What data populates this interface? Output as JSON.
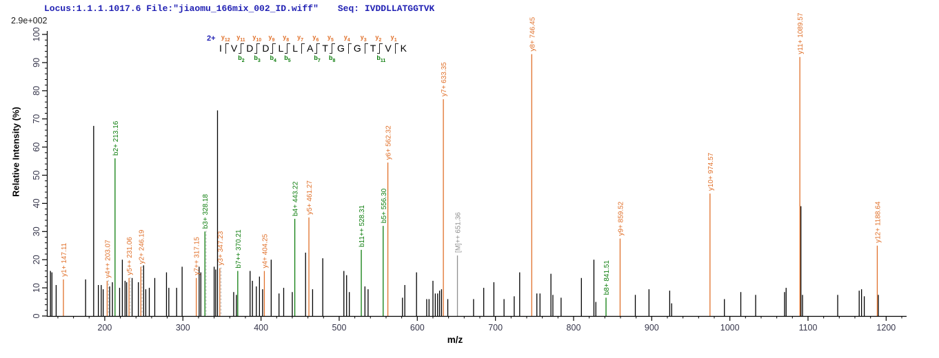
{
  "header": {
    "locus_file": "Locus:1.1.1.1017.6 File:\"jiaomu_166mix_002_ID.wiff\"",
    "seq": "Seq: IVDDLLATGGTVK"
  },
  "peptide": {
    "charge": "2+",
    "residues": [
      "I",
      "V",
      "D",
      "D",
      "L",
      "L",
      "A",
      "T",
      "G",
      "G",
      "T",
      "V",
      "K"
    ],
    "dividers": [
      {
        "y": "y12",
        "b": null
      },
      {
        "y": "y11",
        "b": "b2"
      },
      {
        "y": "y10",
        "b": "b3"
      },
      {
        "y": "y9",
        "b": "b4"
      },
      {
        "y": "y8",
        "b": "b5"
      },
      {
        "y": "y7",
        "b": null
      },
      {
        "y": "y6",
        "b": "b7"
      },
      {
        "y": "y5",
        "b": "b8"
      },
      {
        "y": "y4",
        "b": null
      },
      {
        "y": "y3",
        "b": null
      },
      {
        "y": "y2",
        "b": "b11"
      },
      {
        "y": "y1",
        "b": null
      }
    ]
  },
  "colors": {
    "y_ion": "#e0702a",
    "b_ion": "#0d7d0d",
    "precursor": "#8f8f8f",
    "unassigned_peak": "#000000",
    "header_blue": "#2222b4",
    "tick_label": "#35354a",
    "axis": "#000000"
  },
  "chart_data": {
    "type": "bar",
    "subtype": "ms2-fragmentation-spectrum",
    "xlabel": "m/z",
    "ylabel": "Relative  Intensity (%)",
    "x_axis": {
      "min": 126,
      "max": 1226,
      "major_ticks": [
        200,
        300,
        400,
        500,
        600,
        700,
        800,
        900,
        1000,
        1100,
        1200
      ],
      "minor_tick_step": 20,
      "minor_first": 140,
      "minor_last": 1220
    },
    "y_axis": {
      "min": 0,
      "max": 100,
      "major_tick_step": 10,
      "minor_tick_step": 2,
      "scale_label": "2.9e+002"
    },
    "legend": "none",
    "grid": false,
    "series": [
      {
        "name": "y-ions",
        "colorKey": "y_ion",
        "peaks": [
          {
            "label": "y1+ 147.11",
            "mz": 147.11,
            "intensity": 13,
            "leader": false
          },
          {
            "label": "y4++ 203.07",
            "mz": 203.07,
            "intensity": 12.5,
            "leader": true
          },
          {
            "label": "y5++ 231.06",
            "mz": 231.06,
            "intensity": 13.5,
            "leader": true
          },
          {
            "label": "y2+ 246.19",
            "mz": 246.19,
            "intensity": 17.5,
            "leader": true
          },
          {
            "label": "y7++ 317.15",
            "mz": 317.15,
            "intensity": 13.5,
            "leader": false
          },
          {
            "label": "y3+ 347.23",
            "mz": 347.23,
            "intensity": 17,
            "leader": true
          },
          {
            "label": "y4+ 404.25",
            "mz": 404.25,
            "intensity": 16,
            "leader": false
          },
          {
            "label": "y5+ 461.27",
            "mz": 461.27,
            "intensity": 35,
            "leader": false
          },
          {
            "label": "y6+ 562.32",
            "mz": 562.32,
            "intensity": 54.5,
            "leader": false
          },
          {
            "label": "y7+ 633.35",
            "mz": 633.35,
            "intensity": 77,
            "leader": false
          },
          {
            "label": "y8+ 746.45",
            "mz": 746.45,
            "intensity": 93,
            "leader": false
          },
          {
            "label": "y9+ 859.52",
            "mz": 859.52,
            "intensity": 27.5,
            "leader": false
          },
          {
            "label": "y10+ 974.57",
            "mz": 974.57,
            "intensity": 43.5,
            "leader": false
          },
          {
            "label": "y11+ 1089.57",
            "mz": 1089.57,
            "intensity": 92,
            "leader": false
          },
          {
            "label": "y12+ 1188.64",
            "mz": 1188.64,
            "intensity": 25,
            "leader": false
          }
        ]
      },
      {
        "name": "b-ions",
        "colorKey": "b_ion",
        "peaks": [
          {
            "label": "b2+ 213.16",
            "mz": 213.16,
            "intensity": 56,
            "leader": false
          },
          {
            "label": "b3+ 328.18",
            "mz": 328.18,
            "intensity": 30,
            "leader": true
          },
          {
            "label": "b7++ 370.21",
            "mz": 370.21,
            "intensity": 16,
            "leader": false
          },
          {
            "label": "b4+ 443.22",
            "mz": 443.22,
            "intensity": 34.5,
            "leader": false
          },
          {
            "label": "b11++ 528.31",
            "mz": 528.31,
            "intensity": 23.5,
            "leader": false
          },
          {
            "label": "b5+ 556.30",
            "mz": 556.3,
            "intensity": 32,
            "leader": false
          },
          {
            "label": "b8+ 841.51",
            "mz": 841.51,
            "intensity": 6.5,
            "leader": false
          }
        ]
      },
      {
        "name": "precursor",
        "colorKey": "precursor",
        "peaks": [
          {
            "label": "[M]++ 651.36",
            "mz": 651.36,
            "intensity": 21.5,
            "leader": false
          }
        ]
      },
      {
        "name": "unassigned",
        "colorKey": "unassigned_peak",
        "peaks_xy": [
          [
            130.5,
            16
          ],
          [
            132.4,
            15.5
          ],
          [
            137.8,
            11
          ],
          [
            175.5,
            13
          ],
          [
            185.8,
            67.5
          ],
          [
            191.8,
            11
          ],
          [
            195.5,
            11
          ],
          [
            198,
            9.5
          ],
          [
            206.3,
            10.5
          ],
          [
            209.8,
            12
          ],
          [
            219,
            10
          ],
          [
            222.5,
            20
          ],
          [
            226,
            12.5
          ],
          [
            228,
            12
          ],
          [
            235,
            13.5
          ],
          [
            243,
            12
          ],
          [
            249.8,
            18
          ],
          [
            252.5,
            9.5
          ],
          [
            257,
            10
          ],
          [
            264,
            13.5
          ],
          [
            279,
            15.5
          ],
          [
            282,
            10
          ],
          [
            292,
            10
          ],
          [
            299,
            17.5
          ],
          [
            320.8,
            17.5
          ],
          [
            323,
            15.5
          ],
          [
            340,
            17.5
          ],
          [
            342,
            16.5
          ],
          [
            344.3,
            73
          ],
          [
            365,
            8.5
          ],
          [
            368.5,
            7.5
          ],
          [
            386,
            16
          ],
          [
            389,
            12.5
          ],
          [
            394,
            10.5
          ],
          [
            398,
            14
          ],
          [
            402,
            9.5
          ],
          [
            413,
            20
          ],
          [
            423,
            8
          ],
          [
            429,
            10
          ],
          [
            440,
            8.5
          ],
          [
            457,
            22.5
          ],
          [
            466,
            9.5
          ],
          [
            479,
            20.5
          ],
          [
            506,
            16
          ],
          [
            509.5,
            14.5
          ],
          [
            513,
            8.5
          ],
          [
            533,
            10.5
          ],
          [
            537,
            9.5
          ],
          [
            581,
            6.5
          ],
          [
            584,
            11
          ],
          [
            599,
            15.5
          ],
          [
            612,
            6
          ],
          [
            615,
            6
          ],
          [
            620,
            12.5
          ],
          [
            623,
            8
          ],
          [
            626,
            8
          ],
          [
            628.5,
            9
          ],
          [
            631,
            9.5
          ],
          [
            639,
            6
          ],
          [
            672,
            6
          ],
          [
            685,
            10
          ],
          [
            698,
            12
          ],
          [
            711,
            6
          ],
          [
            724,
            7
          ],
          [
            731,
            15.5
          ],
          [
            753,
            8
          ],
          [
            757,
            8
          ],
          [
            771,
            15
          ],
          [
            773.5,
            7.5
          ],
          [
            784,
            6.5
          ],
          [
            810,
            13.5
          ],
          [
            826,
            20
          ],
          [
            828.5,
            5
          ],
          [
            879,
            7.5
          ],
          [
            896.5,
            9.5
          ],
          [
            923,
            9
          ],
          [
            925.5,
            4.5
          ],
          [
            993,
            6
          ],
          [
            1014,
            8.5
          ],
          [
            1033,
            7.5
          ],
          [
            1070,
            8.5
          ],
          [
            1072,
            10
          ],
          [
            1090.9,
            39
          ],
          [
            1093,
            7.5
          ],
          [
            1138,
            7.5
          ],
          [
            1165.5,
            9
          ],
          [
            1168.5,
            9.5
          ],
          [
            1172,
            7
          ],
          [
            1190,
            7.5
          ]
        ]
      }
    ]
  }
}
